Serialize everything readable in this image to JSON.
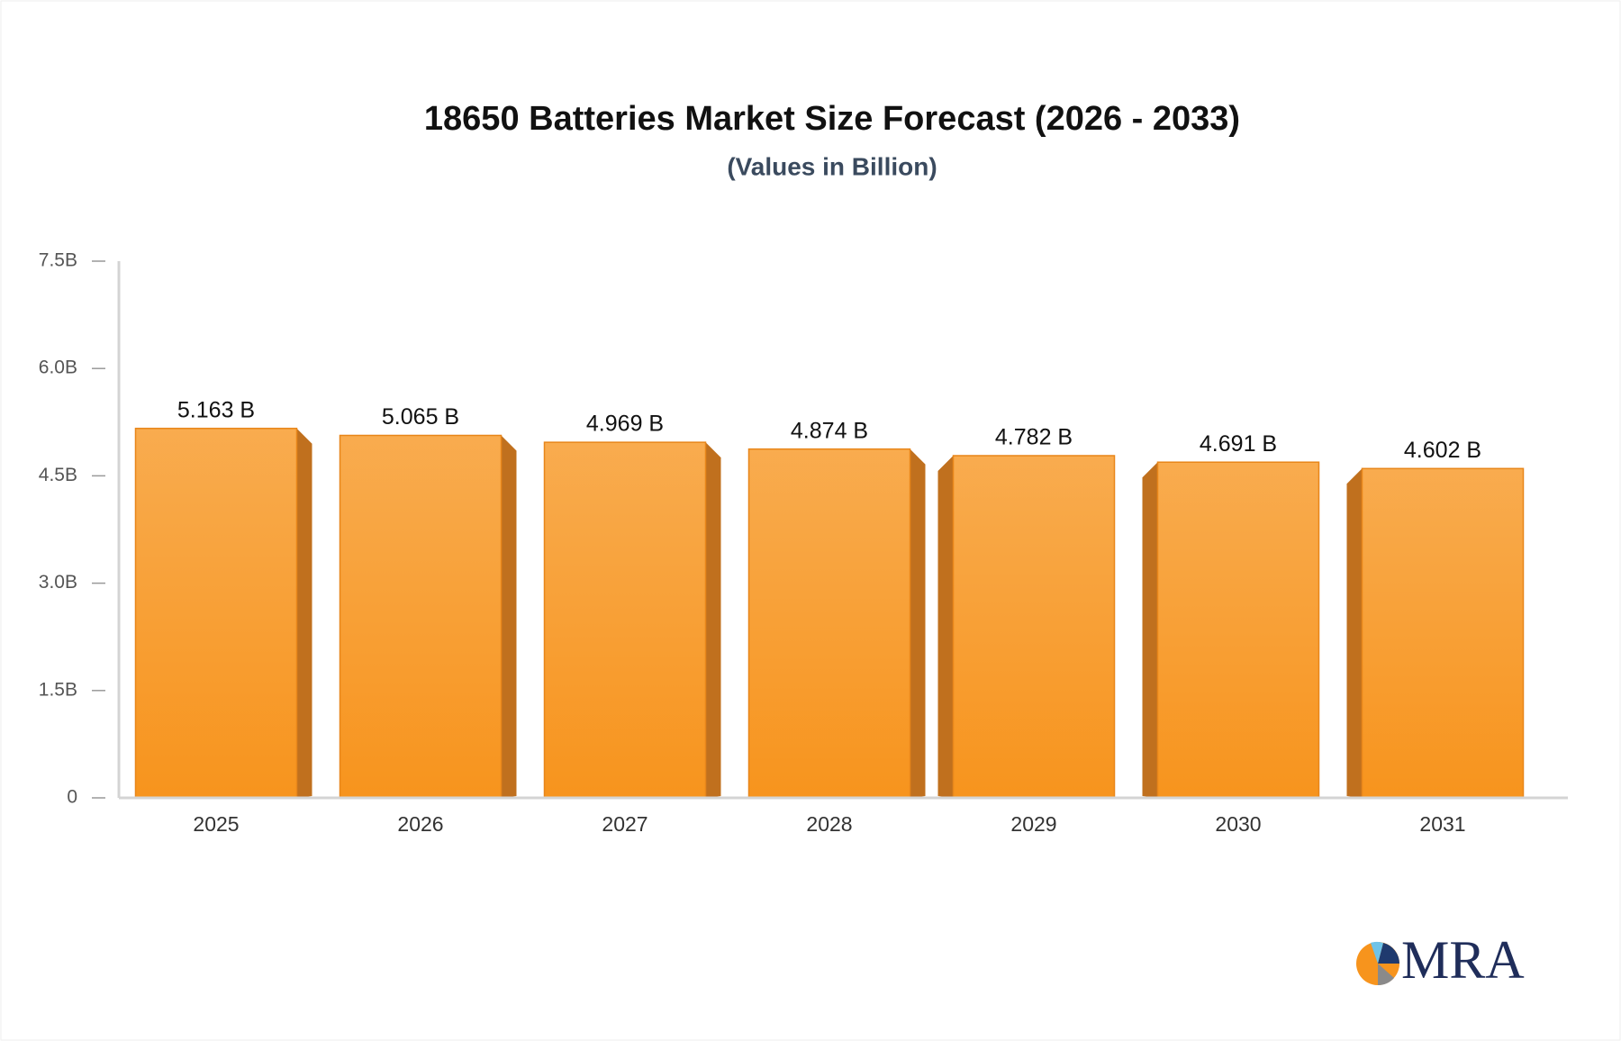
{
  "chart_data": {
    "type": "bar",
    "title": "18650 Batteries Market Size Forecast (2026 - 2033)",
    "subtitle": "(Values in Billion)",
    "categories": [
      "2025",
      "2026",
      "2027",
      "2028",
      "2029",
      "2030",
      "2031"
    ],
    "values": [
      5.163,
      5.065,
      4.969,
      4.874,
      4.782,
      4.691,
      4.602
    ],
    "value_labels": [
      "5.163 B",
      "5.065 B",
      "4.969 B",
      "4.874 B",
      "4.782 B",
      "4.691 B",
      "4.602 B"
    ],
    "color": "#f7941d",
    "ylim": [
      0,
      7.5
    ],
    "yticks": [
      0,
      {
        "value": 1.5,
        "label": "1.5B"
      },
      {
        "value": 3.0,
        "label": "3.0B"
      },
      {
        "value": 4.5,
        "label": "4.5B"
      },
      {
        "value": 6.0,
        "label": "6.0B"
      },
      {
        "value": 7.5,
        "label": "7.5B"
      }
    ],
    "grid": false
  },
  "logo": "MRA"
}
